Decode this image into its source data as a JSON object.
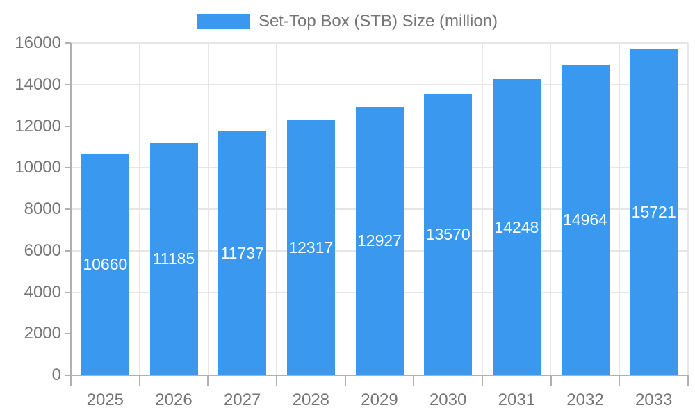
{
  "legend": {
    "label": "Set-Top Box (STB) Size (million)"
  },
  "chart_data": {
    "type": "bar",
    "title": "",
    "xlabel": "",
    "ylabel": "",
    "legend": "Set-Top Box (STB) Size (million)",
    "legend_position": "top",
    "categories": [
      "2025",
      "2026",
      "2027",
      "2028",
      "2029",
      "2030",
      "2031",
      "2032",
      "2033"
    ],
    "values": [
      10660,
      11185,
      11737,
      12317,
      12927,
      13570,
      14248,
      14964,
      15721
    ],
    "value_labels": "inside-middle",
    "ylim": [
      0,
      16000
    ],
    "ytick_step": 2000,
    "yticks": [
      0,
      2000,
      4000,
      6000,
      8000,
      10000,
      12000,
      14000,
      16000
    ],
    "grid": "horizontal-and-vertical",
    "colors": {
      "bar": "#3a99ee",
      "value_label": "#ffffff",
      "axis": "#b0b0b0",
      "grid": "#e6e6e6",
      "tick_text": "#757575",
      "legend_text": "#757575",
      "background": "#ffffff"
    }
  }
}
